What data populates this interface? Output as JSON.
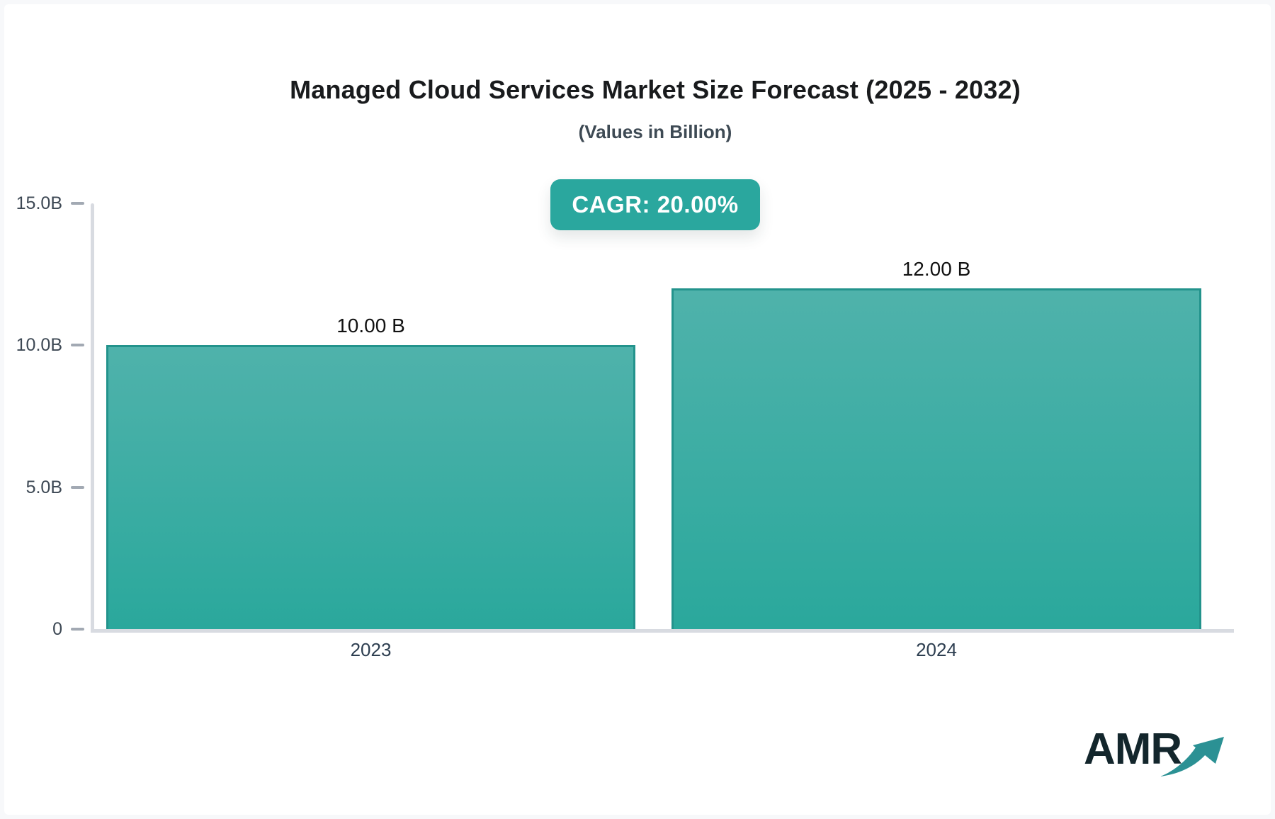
{
  "header": {
    "title": "Managed Cloud Services Market Size Forecast (2025 - 2032)",
    "subtitle": "(Values in Billion)",
    "cagr_badge": "CAGR: 20.00%"
  },
  "chart_data": {
    "type": "bar",
    "title": "Managed Cloud Services Market Size Forecast (2025 - 2032)",
    "subtitle": "(Values in Billion)",
    "categories": [
      "2023",
      "2024"
    ],
    "values": [
      10,
      12
    ],
    "value_labels": [
      "10.00 B",
      "12.00 B"
    ],
    "cagr": "20.00%",
    "ylim": [
      0,
      15
    ],
    "ytick_values": [
      15,
      10,
      5,
      0
    ],
    "ytick_labels": [
      "15.0B",
      "10.0B",
      "5.0B",
      "0"
    ],
    "grid": false,
    "legend": false,
    "bar_orientation": "vertical"
  },
  "colors": {
    "accent_teal": "#2AA79E",
    "bar_top": "#4FB2AB",
    "bar_bottom": "#2AA89C",
    "bar_border": "#23938C",
    "axis_line": "#D8DBE1",
    "tick": "#A2A9B3",
    "axis_label": "#3D4854",
    "x_label": "#2D3E50",
    "title_text": "#191B1D",
    "subtitle_text": "#3E4A54",
    "logo_dark": "#13262C",
    "logo_teal": "#2B9194",
    "frame_bg": "#F7F8FA"
  },
  "logo": {
    "text": "AMR"
  }
}
